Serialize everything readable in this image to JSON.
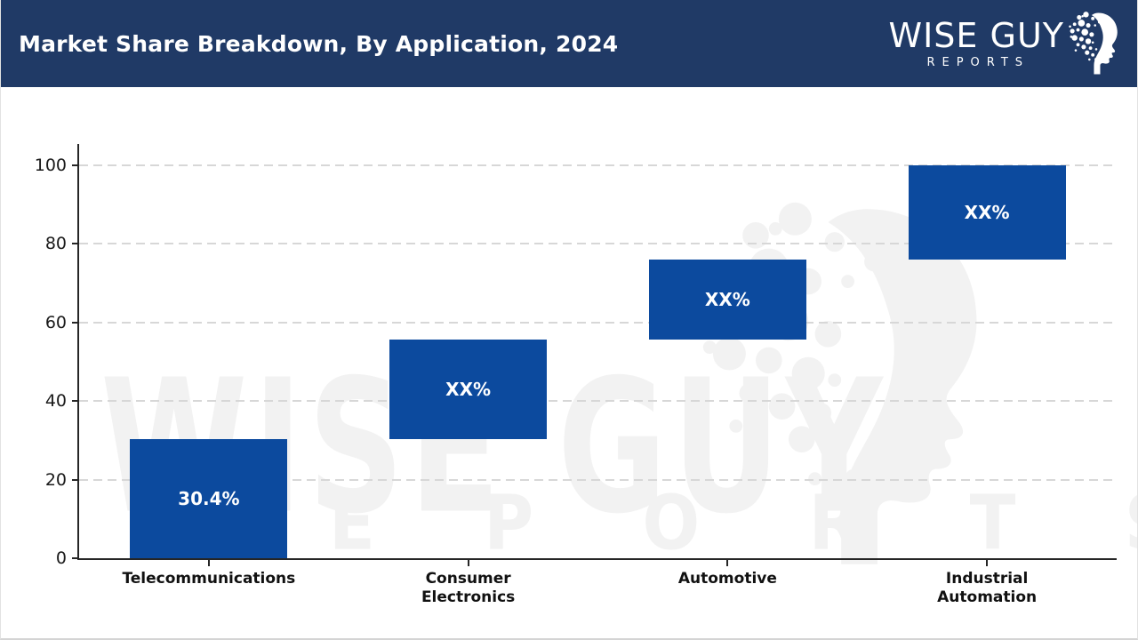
{
  "header": {
    "title": "Market Share Breakdown, By Application, 2024",
    "logo": {
      "primary": "WISE GUY",
      "secondary": "REPORTS"
    }
  },
  "watermark": {
    "primary": "WISE GUY",
    "secondary": "R E P O R T S"
  },
  "chart_data": {
    "type": "bar",
    "variant": "waterfall",
    "title": "Market Share Breakdown, By Application, 2024",
    "categories": [
      "Telecommunications",
      "Consumer\nElectronics",
      "Automotive",
      "Industrial\nAutomation"
    ],
    "segments": [
      {
        "category": "Telecommunications",
        "start": 0,
        "end": 30.4,
        "label": "30.4%"
      },
      {
        "category": "Consumer Electronics",
        "start": 30.4,
        "end": 55.7,
        "label": "XX%"
      },
      {
        "category": "Automotive",
        "start": 55.7,
        "end": 76.1,
        "label": "XX%"
      },
      {
        "category": "Industrial Automation",
        "start": 76.1,
        "end": 100,
        "label": "XX%"
      }
    ],
    "yticks": [
      0,
      20,
      40,
      60,
      80,
      100
    ],
    "ylim": [
      0,
      105.4
    ],
    "xlabel": "",
    "ylabel": "",
    "legend": null,
    "grid": "horizontal-dashed",
    "colors": {
      "bar": "#0c4a9e",
      "bar_label": "#ffffff",
      "axis": "#262626",
      "gridline": "#d7d7d7",
      "tick_label": "#1a1a1a",
      "header_bg": "#203a66",
      "watermark": "#f2f2f2"
    }
  }
}
